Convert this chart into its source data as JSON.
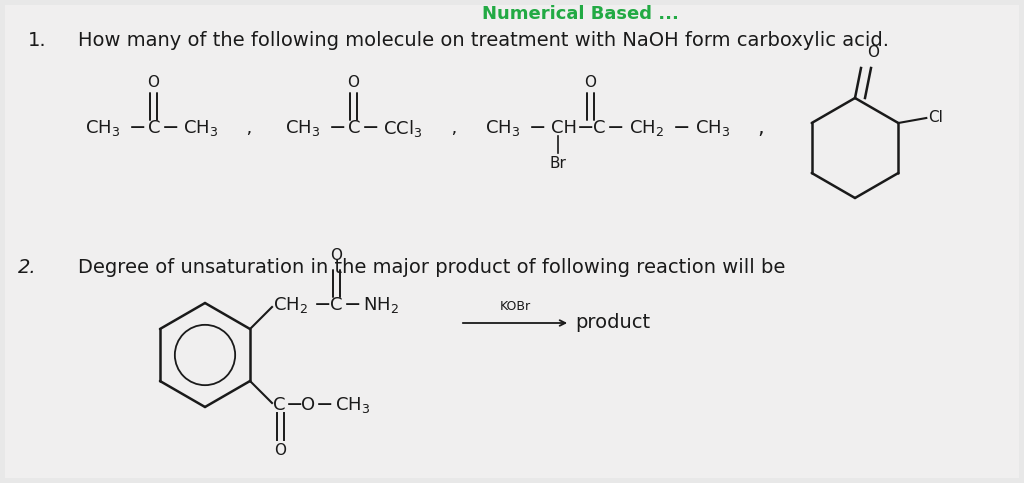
{
  "bg_color": "#e8e8e8",
  "text_color": "#1a1a1a",
  "q1_number": "1.",
  "q1_text": "How many of the following molecule on treatment with NaOH form carboxylic acid.",
  "q2_number": "2.",
  "q2_text": "Degree of unsaturation in the major product of following reaction will be",
  "font_size_main": 14,
  "font_size_chem": 13,
  "font_size_small": 11
}
